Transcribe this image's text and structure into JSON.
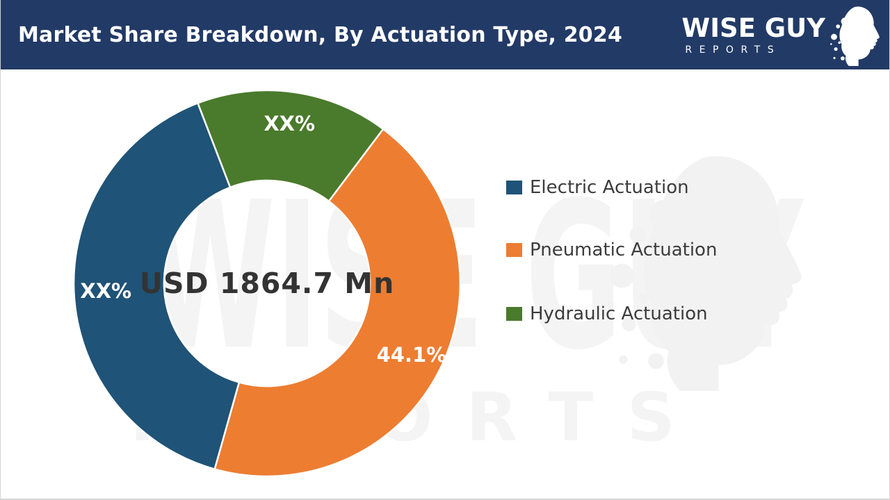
{
  "header": {
    "title": "Market Share Breakdown, By Actuation Type, 2024",
    "logo": {
      "line1": "WISE GUY",
      "line2": "REPORTS"
    }
  },
  "chart_data": {
    "type": "pie",
    "subtype": "donut",
    "title": "Market Share Breakdown, By Actuation Type, 2024",
    "center_label": "USD 1864.7 Mn",
    "legend_position": "right",
    "start_angle_deg": -21,
    "draw_order": [
      2,
      1,
      0
    ],
    "segments": [
      {
        "id": "electric",
        "label": "Electric Actuation",
        "display_value": "XX%",
        "approx_percent": 39.8,
        "color": "#1F5377"
      },
      {
        "id": "pneumatic",
        "label": "Pneumatic Actuation",
        "display_value": "44.1%",
        "approx_percent": 44.1,
        "color": "#ED7D31"
      },
      {
        "id": "hydraulic",
        "label": "Hydraulic Actuation",
        "display_value": "XX%",
        "approx_percent": 16.1,
        "color": "#4A7A2B"
      }
    ]
  },
  "watermark": {
    "line1": "WISE GUY",
    "line2": "REPORTS"
  },
  "colors": {
    "header_bg": "#223A66",
    "title_text": "#FFFFFF",
    "center_text": "#333333",
    "legend_text": "#3C3C3C",
    "slice_label_text": "#FFFFFF",
    "watermark": "#F4F4F4",
    "page_border": "#D4D4D4",
    "segment_divider": "#FFFFFF"
  }
}
